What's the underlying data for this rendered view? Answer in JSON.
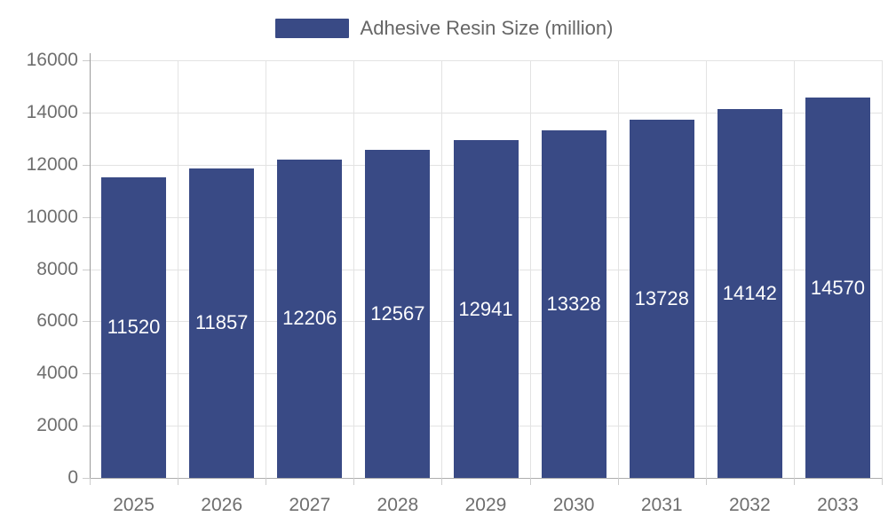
{
  "chart_data": {
    "type": "bar",
    "title": "",
    "legend": {
      "entries": [
        "Adhesive Resin Size (million)"
      ],
      "position": "top"
    },
    "categories": [
      "2025",
      "2026",
      "2027",
      "2028",
      "2029",
      "2030",
      "2031",
      "2032",
      "2033"
    ],
    "series": [
      {
        "name": "Adhesive Resin Size (million)",
        "values": [
          11520,
          11857,
          12206,
          12567,
          12941,
          13328,
          13728,
          14142,
          14570
        ]
      }
    ],
    "data_labels": true,
    "xlabel": "",
    "ylabel": "",
    "ylim": [
      0,
      16000
    ],
    "ytick_step": 2000,
    "yticks": [
      0,
      2000,
      4000,
      6000,
      8000,
      10000,
      12000,
      14000,
      16000
    ],
    "grid": true,
    "colors": {
      "bar": "#394A85",
      "bar_label": "#FFFFFF",
      "grid_line": "#E3E3E3",
      "axis_line": "#ADADAD",
      "tick_line": "#CCCCCC",
      "axis_text": "#6E6E6E",
      "legend_text": "#666666",
      "background": "#FFFFFF"
    }
  }
}
